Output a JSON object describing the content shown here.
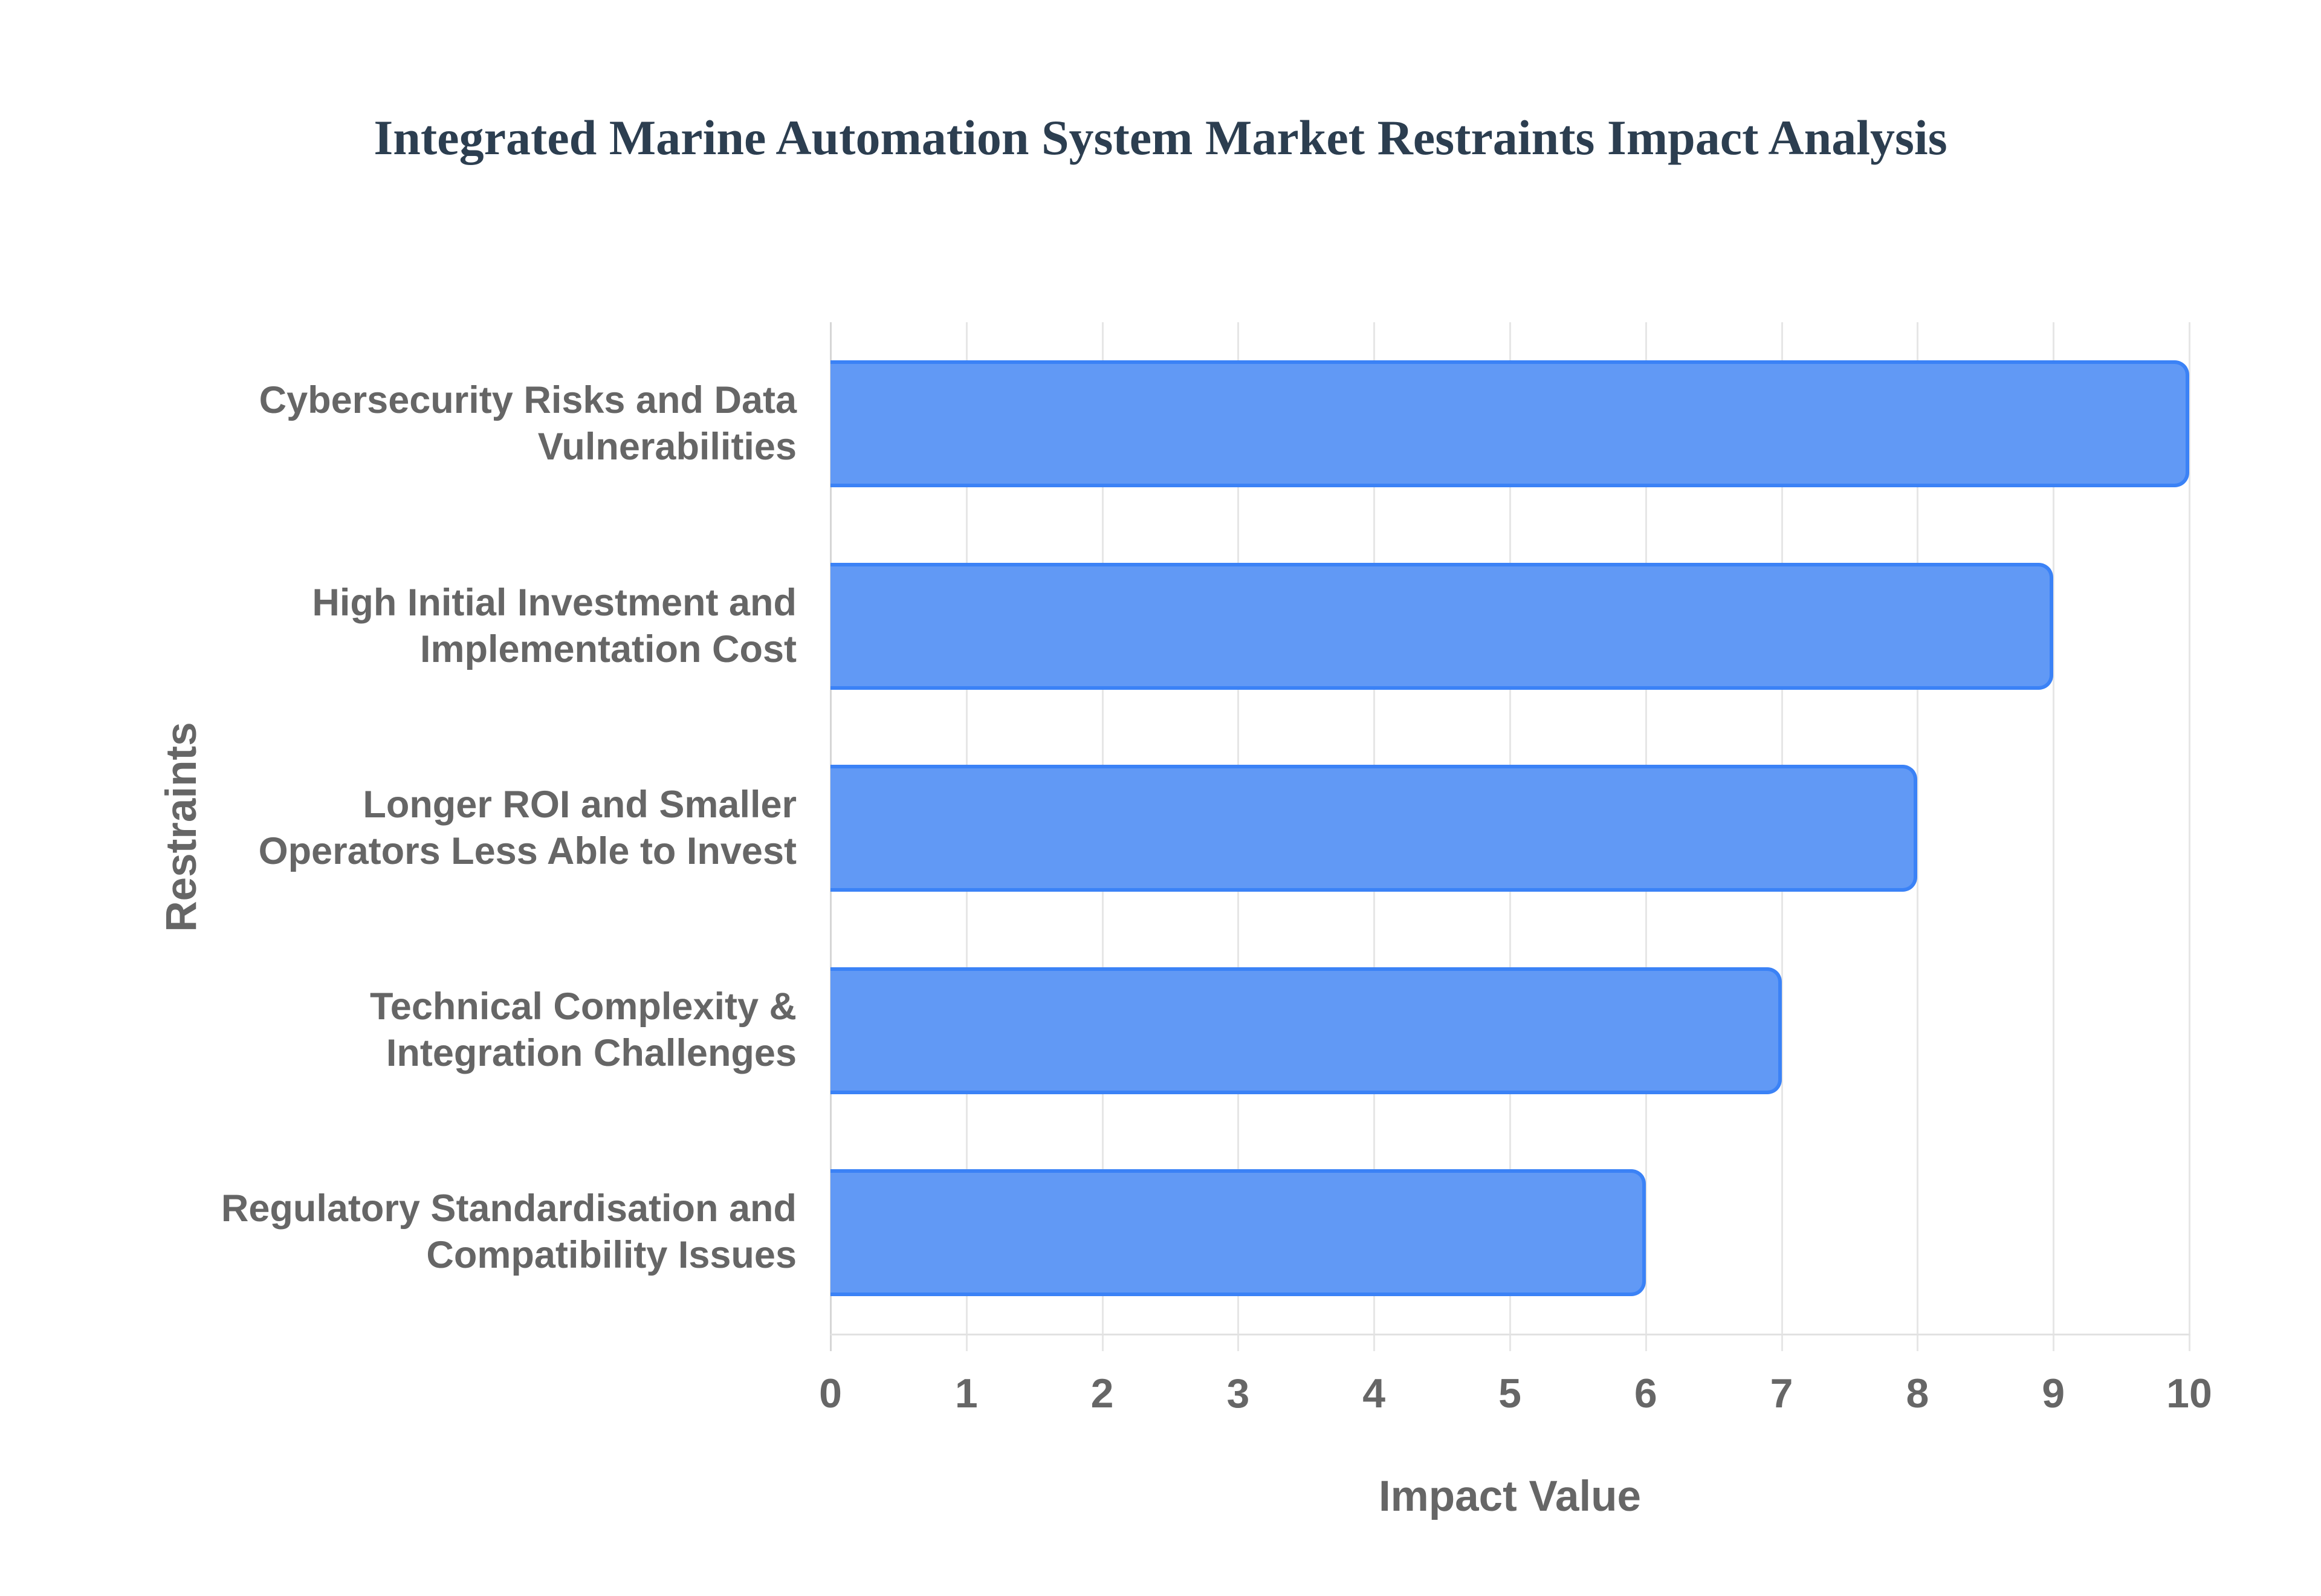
{
  "title": "Integrated Marine Automation System Market Restraints Impact Analysis",
  "x_axis": {
    "title": "Impact Value",
    "ticks": [
      "0",
      "1",
      "2",
      "3",
      "4",
      "5",
      "6",
      "7",
      "8",
      "9",
      "10"
    ]
  },
  "y_axis": {
    "title": "Restraints"
  },
  "categories": [
    {
      "line1": "Cybersecurity Risks and Data",
      "line2": "Vulnerabilities",
      "value": 10
    },
    {
      "line1": "High Initial Investment and",
      "line2": "Implementation Cost",
      "value": 9
    },
    {
      "line1": "Longer ROI and Smaller",
      "line2": "Operators Less Able to Invest",
      "value": 8
    },
    {
      "line1": "Technical Complexity &",
      "line2": "Integration Challenges",
      "value": 7
    },
    {
      "line1": "Regulatory Standardisation and",
      "line2": "Compatibility Issues",
      "value": 6
    }
  ],
  "colors": {
    "bar_fill": "#6199f5",
    "bar_border": "#3b82f6",
    "title": "#2c3e50",
    "axis_text": "#666666",
    "grid": "#e6e6e6"
  },
  "chart_data": {
    "type": "bar",
    "orientation": "horizontal",
    "title": "Integrated Marine Automation System Market Restraints Impact Analysis",
    "xlabel": "Impact Value",
    "ylabel": "Restraints",
    "categories": [
      "Cybersecurity Risks and Data Vulnerabilities",
      "High Initial Investment and Implementation Cost",
      "Longer ROI and Smaller Operators Less Able to Invest",
      "Technical Complexity & Integration Challenges",
      "Regulatory Standardisation and Compatibility Issues"
    ],
    "values": [
      10,
      9,
      8,
      7,
      6
    ],
    "xlim": [
      0,
      10
    ],
    "x_ticks": [
      0,
      1,
      2,
      3,
      4,
      5,
      6,
      7,
      8,
      9,
      10
    ],
    "grid": {
      "x": true,
      "y": false
    },
    "legend": null
  }
}
